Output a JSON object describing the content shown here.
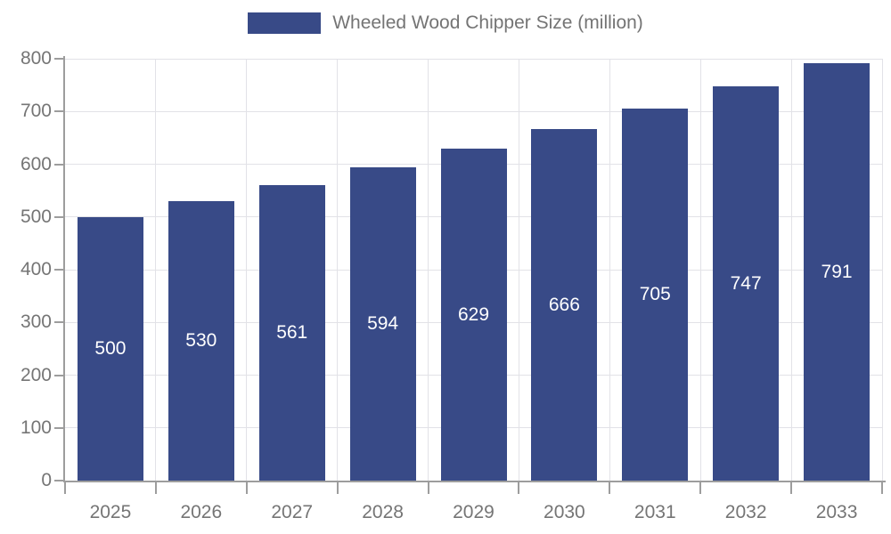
{
  "legend": {
    "label": "Wheeled Wood Chipper Size (million)"
  },
  "chart_data": {
    "type": "bar",
    "title": "",
    "categories": [
      "2025",
      "2026",
      "2027",
      "2028",
      "2029",
      "2030",
      "2031",
      "2032",
      "2033"
    ],
    "series": [
      {
        "name": "Wheeled Wood Chipper Size (million)",
        "values": [
          500,
          530,
          561,
          594,
          629,
          666,
          705,
          747,
          791
        ]
      }
    ],
    "xlabel": "",
    "ylabel": "",
    "ylim": [
      0,
      800
    ],
    "ytick_step": 100,
    "grid": true,
    "legend_position": "top-center",
    "value_labels": "inside-center",
    "colors": {
      "bar": "#384a87",
      "value_label": "#ffffff",
      "axis_label": "#757575",
      "grid_line": "#e2e2e7",
      "axis_line": "#9d9d9d",
      "background": "#ffffff"
    }
  }
}
